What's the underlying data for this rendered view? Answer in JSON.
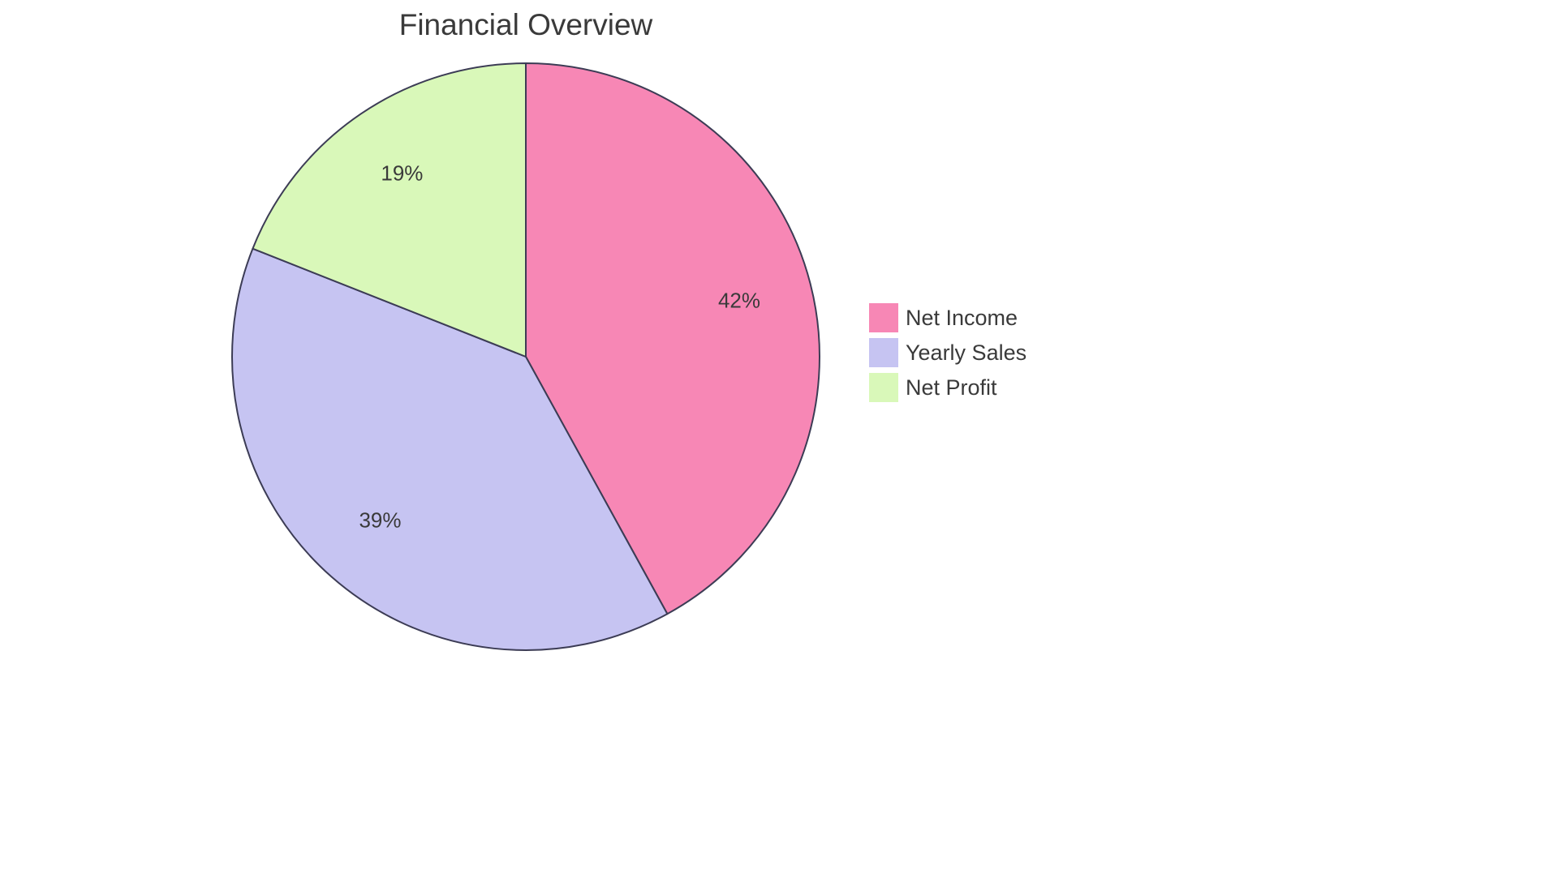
{
  "chart_data": {
    "type": "pie",
    "title": "Financial Overview",
    "labels": [
      "Net Income",
      "Yearly Sales",
      "Net Profit"
    ],
    "values": [
      42,
      39,
      19
    ],
    "percent_labels": [
      "42%",
      "39%",
      "19%"
    ],
    "colors": [
      "#F787B5",
      "#C6C4F2",
      "#D9F8B9"
    ],
    "stroke_color": "#3C3C55",
    "start_angle_deg": 0,
    "direction": "clockwise",
    "legend_position": "right"
  },
  "legend": {
    "items": [
      {
        "label": "Net Income",
        "color": "#F787B5"
      },
      {
        "label": "Yearly Sales",
        "color": "#C6C4F2"
      },
      {
        "label": "Net Profit",
        "color": "#D9F8B9"
      }
    ]
  }
}
